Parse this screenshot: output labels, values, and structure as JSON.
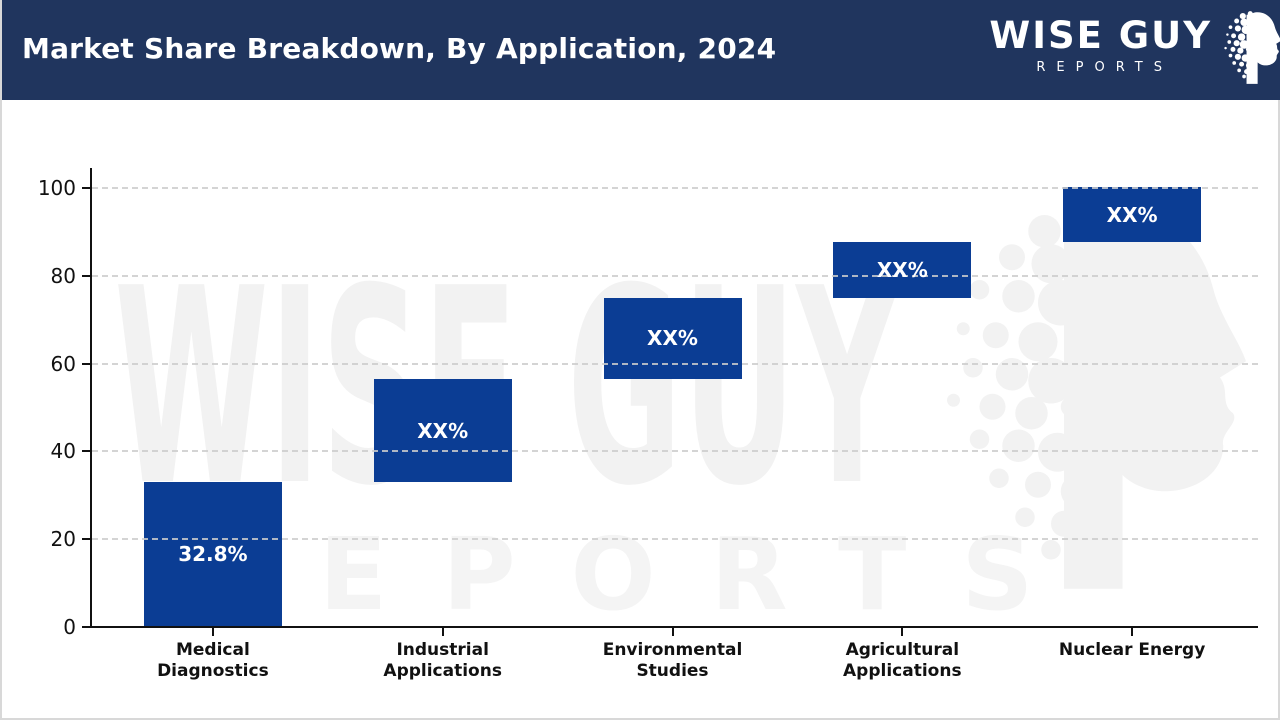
{
  "header": {
    "title": "Market Share Breakdown, By Application, 2024",
    "bg_color": "#20355e",
    "logo": {
      "line1": "WISE GUY",
      "line2": "REPORTS"
    }
  },
  "watermark": {
    "line1": "WISE GUY",
    "line2": "REPORTS"
  },
  "colors": {
    "bar": "#0b3d94",
    "header_bg": "#20355e",
    "grid": "#cccccc",
    "axis": "#111111",
    "bar_label_text": "#ffffff"
  },
  "chart_data": {
    "type": "bar",
    "subtype": "waterfall",
    "title": "Market Share Breakdown, By Application, 2024",
    "categories": [
      [
        "Medical",
        "Diagnostics"
      ],
      [
        "Industrial",
        "Applications"
      ],
      [
        "Environmental",
        "Studies"
      ],
      [
        "Agricultural",
        "Applications"
      ],
      [
        "Nuclear Energy"
      ]
    ],
    "segments": [
      {
        "start": 0,
        "end": 32.8,
        "label": "32.8%"
      },
      {
        "start": 32.8,
        "end": 56.2,
        "label": "XX%"
      },
      {
        "start": 56.2,
        "end": 74.8,
        "label": "XX%"
      },
      {
        "start": 74.8,
        "end": 87.4,
        "label": "XX%"
      },
      {
        "start": 87.4,
        "end": 100,
        "label": "XX%"
      }
    ],
    "ylim": [
      0,
      100
    ],
    "yticks": [
      0,
      20,
      40,
      60,
      80,
      100
    ],
    "xlabel": "",
    "ylabel": "",
    "grid": "dashed-horizontal",
    "legend": "none",
    "bar_color": "#0b3d94"
  }
}
